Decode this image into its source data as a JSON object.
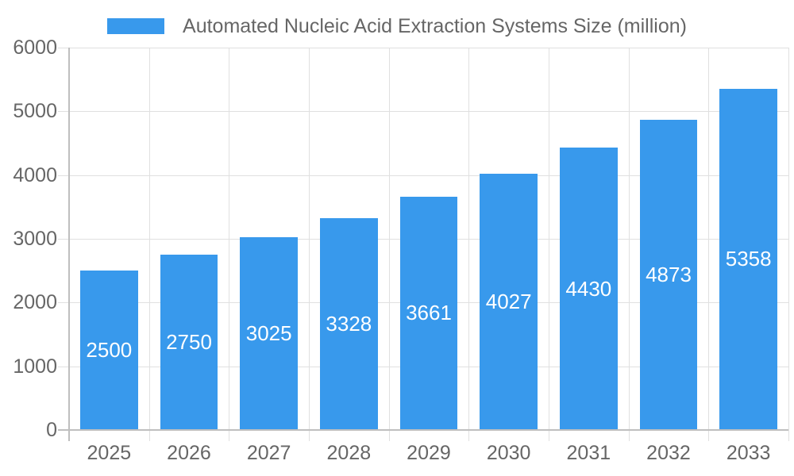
{
  "legend": {
    "label": "Automated Nucleic Acid Extraction Systems Size (million)"
  },
  "chart_data": {
    "type": "bar",
    "title": "Automated Nucleic Acid Extraction Systems Size (million)",
    "categories": [
      "2025",
      "2026",
      "2027",
      "2028",
      "2029",
      "2030",
      "2031",
      "2032",
      "2033"
    ],
    "values": [
      2500,
      2750,
      3025,
      3328,
      3661,
      4027,
      4430,
      4873,
      5358
    ],
    "series_name": "Automated Nucleic Acid Extraction Systems Size (million)",
    "xlabel": "",
    "ylabel": "",
    "ylim": [
      0,
      6000
    ],
    "ytick_step": 1000,
    "ytick_labels": [
      "0",
      "1000",
      "2000",
      "3000",
      "4000",
      "5000",
      "6000"
    ],
    "grid": true,
    "legend_position": "top",
    "bar_value_labels_shown": true,
    "colors": {
      "bar": "#3899ec",
      "grid_line": "#e0e0e0",
      "axis_zero_line": "#bfbfbf",
      "tick_text": "#666666",
      "bar_label_text": "#ffffff",
      "background": "#ffffff"
    }
  }
}
